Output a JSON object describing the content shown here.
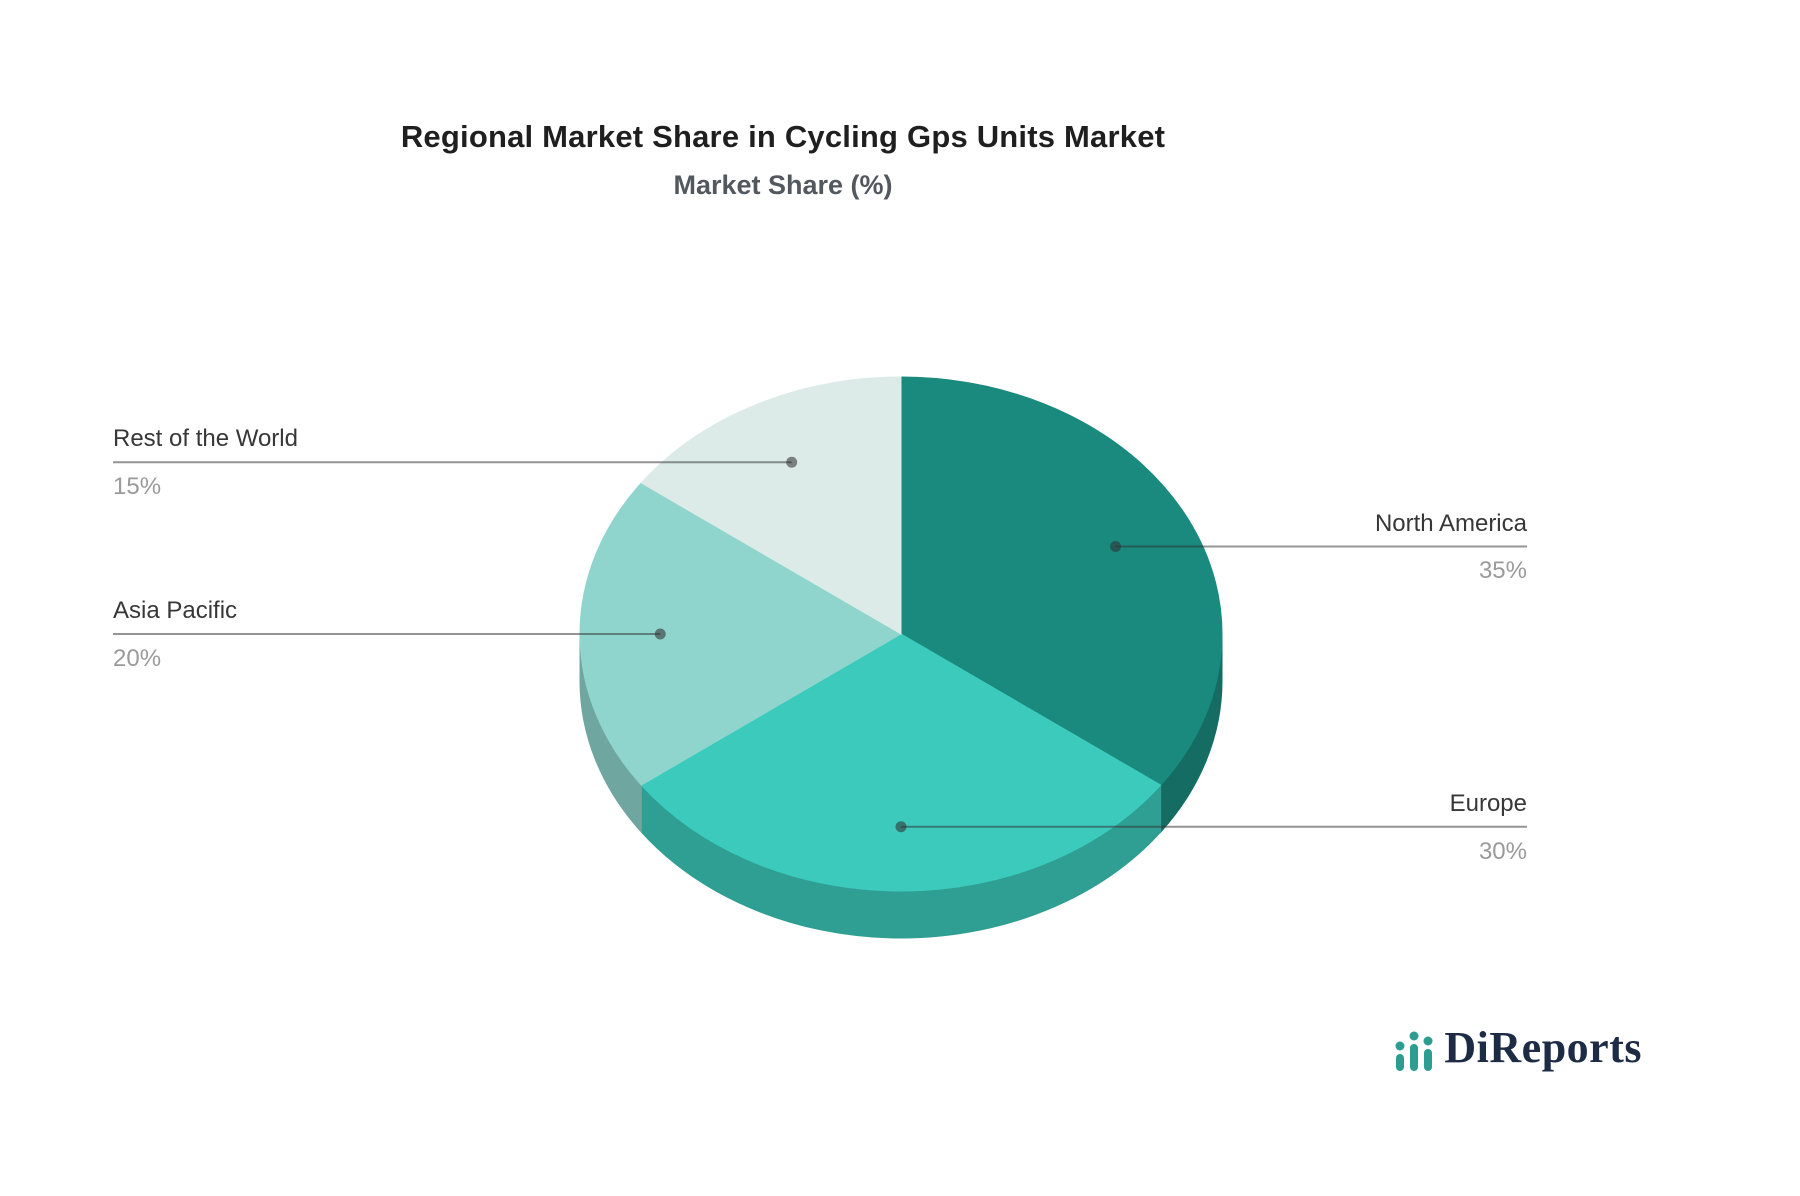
{
  "title": "Regional Market Share in Cycling Gps Units Market",
  "subtitle": "Market Share (%)",
  "chart_data": {
    "type": "pie",
    "style": "3d-pie",
    "title": "Regional Market Share in Cycling Gps Units Market",
    "subtitle": "Market Share (%)",
    "unit": "%",
    "start_angle_deg": 0,
    "direction": "clockwise",
    "legend_position": "leader-lines",
    "slices": [
      {
        "label": "North America",
        "value": 35,
        "display": "35%",
        "color": "#1a8a7e",
        "label_side": "right"
      },
      {
        "label": "Europe",
        "value": 30,
        "display": "30%",
        "color": "#3ccabd",
        "label_side": "right"
      },
      {
        "label": "Asia Pacific",
        "value": 20,
        "display": "20%",
        "color": "#8fd5cd",
        "label_side": "left"
      },
      {
        "label": "Rest of the World",
        "value": 15,
        "display": "15%",
        "color": "#dcebe7",
        "label_side": "left"
      }
    ]
  },
  "logo": {
    "text": "DiReports",
    "icon": "bar-chart-icon",
    "icon_color": "#2d9d92",
    "text_color": "#1d2b45"
  },
  "colors": {
    "background": "#ffffff",
    "title": "#1f1f1f",
    "subtitle": "#53585f",
    "label_name": "#373737",
    "label_value": "#9a9a9a",
    "leader_line": "rgba(50,50,50,0.52)"
  }
}
